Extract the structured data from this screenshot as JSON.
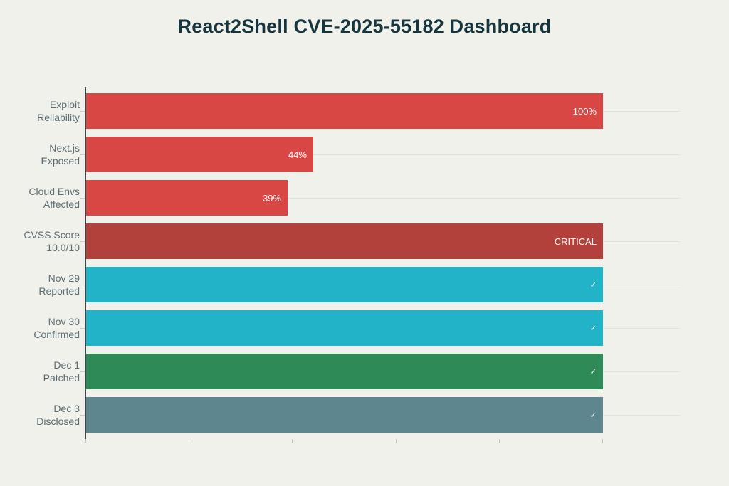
{
  "page": {
    "title": "React2Shell CVE-2025-55182 Dashboard",
    "background_color": "#f1f1eb",
    "title_color": "#16353e"
  },
  "chart_data": {
    "type": "bar",
    "orientation": "horizontal",
    "title": "React2Shell CVE-2025-55182 Dashboard",
    "xlabel": "",
    "ylabel": "",
    "x_axis": {
      "min": 0,
      "max": 100,
      "tick_step": 20,
      "tick_labels_visible": false
    },
    "grid": "horizontal-row-gridlines",
    "legend": "none",
    "categories": [
      "Exploit Reliability",
      "Next.js Exposed",
      "Cloud Envs Affected",
      "CVSS Score 10.0/10",
      "Nov 29 Reported",
      "Nov 30 Confirmed",
      "Dec 1 Patched",
      "Dec 3 Disclosed"
    ],
    "bars": [
      {
        "label_lines": [
          "Exploit",
          "Reliability"
        ],
        "value": 100,
        "value_label": "100%",
        "color": "#d94745",
        "label_kind": "percent"
      },
      {
        "label_lines": [
          "Next.js",
          "Exposed"
        ],
        "value": 44,
        "value_label": "44%",
        "color": "#d94745",
        "label_kind": "percent"
      },
      {
        "label_lines": [
          "Cloud Envs",
          "Affected"
        ],
        "value": 39,
        "value_label": "39%",
        "color": "#d94745",
        "label_kind": "percent"
      },
      {
        "label_lines": [
          "CVSS Score",
          "10.0/10"
        ],
        "value": 100,
        "value_label": "CRITICAL",
        "color": "#b2413c",
        "label_kind": "text"
      },
      {
        "label_lines": [
          "Nov 29",
          "Reported"
        ],
        "value": 100,
        "value_label": "✓",
        "color": "#22b3c9",
        "label_kind": "check"
      },
      {
        "label_lines": [
          "Nov 30",
          "Confirmed"
        ],
        "value": 100,
        "value_label": "✓",
        "color": "#22b3c9",
        "label_kind": "check"
      },
      {
        "label_lines": [
          "Dec 1",
          "Patched"
        ],
        "value": 100,
        "value_label": "✓",
        "color": "#2e8b57",
        "label_kind": "check"
      },
      {
        "label_lines": [
          "Dec 3",
          "Disclosed"
        ],
        "value": 100,
        "value_label": "✓",
        "color": "#5e868e",
        "label_kind": "check"
      }
    ],
    "colors": {
      "metric_red": "#d94745",
      "severity_dark_red": "#b2413c",
      "timeline_cyan": "#22b3c9",
      "patched_green": "#2e8b57",
      "disclosed_slate": "#5e868e",
      "gridline": "#e3e3db",
      "axis_line": "#3f4447",
      "tick": "#c7c7c0",
      "category_label": "#5c6d73",
      "value_label": "#ffffff"
    }
  }
}
